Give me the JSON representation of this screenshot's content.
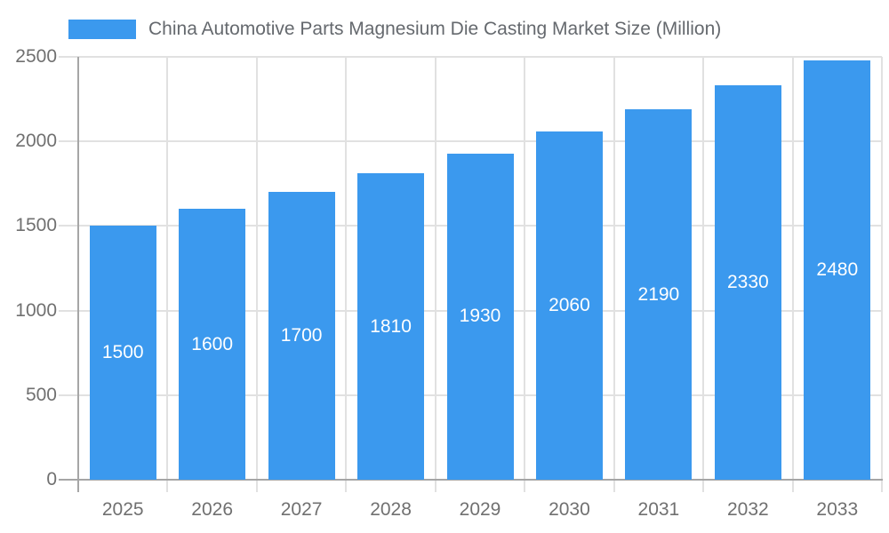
{
  "legend": {
    "label": "China Automotive Parts Magnesium Die Casting Market Size (Million)"
  },
  "chart_data": {
    "type": "bar",
    "title": "China Automotive Parts Magnesium Die Casting Market Size (Million)",
    "categories": [
      "2025",
      "2026",
      "2027",
      "2028",
      "2029",
      "2030",
      "2031",
      "2032",
      "2033"
    ],
    "values": [
      1500,
      1600,
      1700,
      1810,
      1930,
      2060,
      2190,
      2330,
      2480
    ],
    "value_labels": [
      "1500",
      "1600",
      "1700",
      "1810",
      "1930",
      "2060",
      "2190",
      "2330",
      "2480"
    ],
    "xlabel": "",
    "ylabel": "",
    "ylim": [
      0,
      2500
    ],
    "yticks": [
      0,
      500,
      1000,
      1500,
      2000,
      2500
    ],
    "grid": true,
    "legend_position": "top",
    "bar_color": "#3b99ee",
    "value_label_color": "#ffffff",
    "gridline_color": "#e1e1e1",
    "axis_color": "#a6a6a6",
    "tick_label_color": "#707070",
    "legend_text_color": "#65696e",
    "background_color": "#ffffff"
  }
}
